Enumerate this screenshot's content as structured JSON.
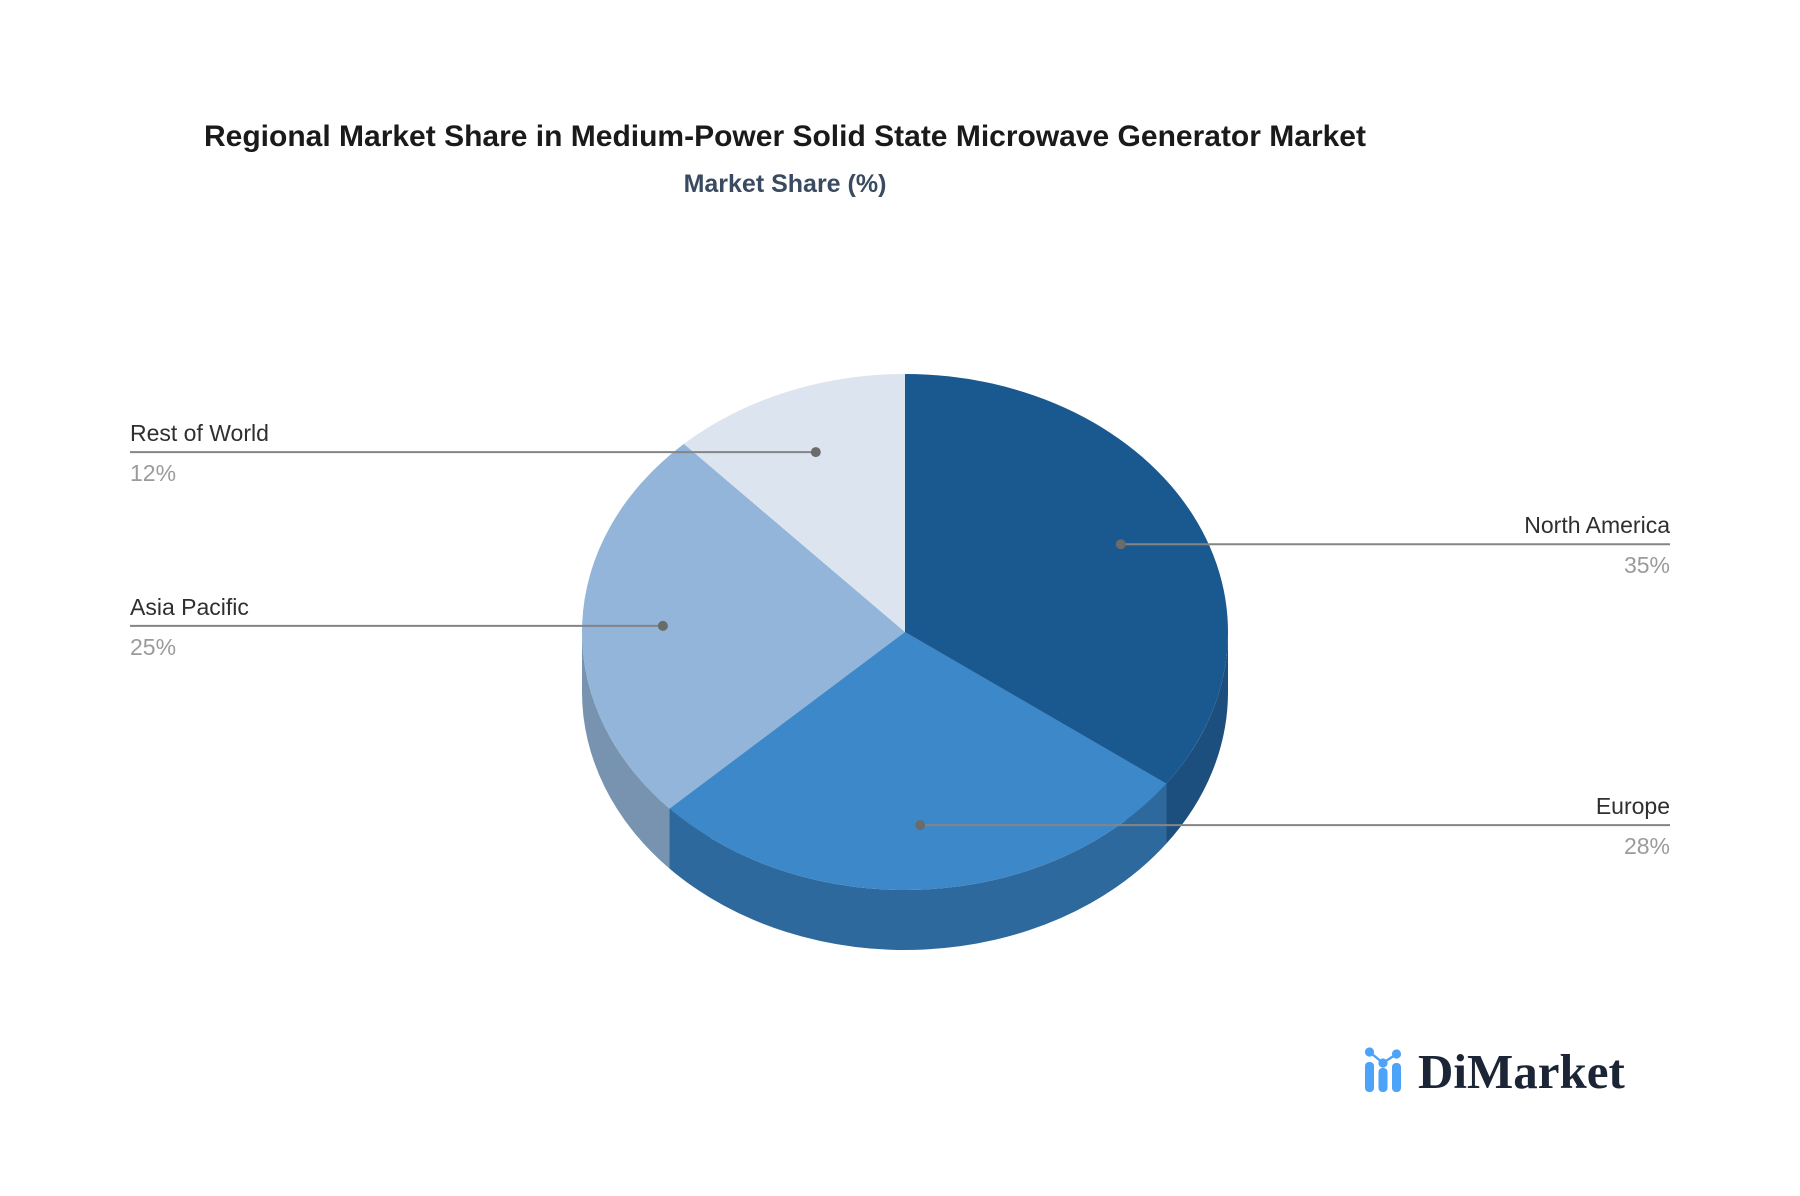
{
  "chart_data": {
    "type": "pie",
    "title": "Regional Market Share in Medium-Power Solid State Microwave Generator Market",
    "subtitle": "Market Share (%)",
    "unit": "%",
    "categories": [
      "North America",
      "Europe",
      "Asia Pacific",
      "Rest of World"
    ],
    "values": [
      35,
      28,
      25,
      12
    ],
    "value_labels": [
      "35%",
      "28%",
      "25%",
      "12%"
    ],
    "start_angle_deg": 0,
    "direction": "clockwise",
    "style": "3d",
    "legend_position": "connector-labels",
    "colors": [
      {
        "top": "#1A5890",
        "side": "#1C4E7E"
      },
      {
        "top": "#3C88C9",
        "side": "#2D699D"
      },
      {
        "top": "#92B5D9",
        "side": "#7893AF"
      },
      {
        "top": "#DCE4EF",
        "side": "#C2CCDC"
      }
    ],
    "leader_line_color": "#858585",
    "leader_dot_color": "#6b6b6b",
    "label_name_color": "#2f2f2f",
    "label_value_color": "#9b9b9b",
    "title_color": "#1a1a1a",
    "subtitle_color": "#3a4a60"
  },
  "branding": {
    "logo_text": "DiMarket",
    "logo_text_color": "#1b2535",
    "logo_icon_color": "#4DA3F7"
  }
}
